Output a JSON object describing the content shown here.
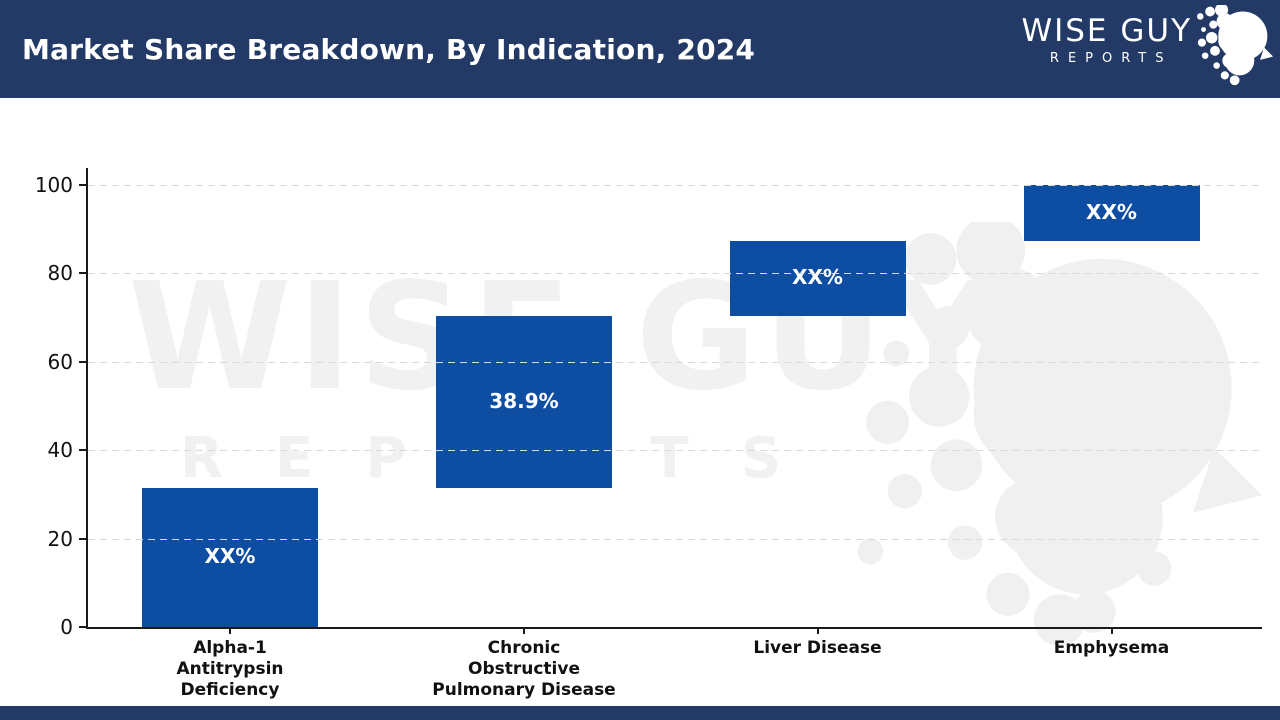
{
  "header": {
    "title": "Market Share Breakdown, By Indication, 2024",
    "logo": {
      "line1": "WISE GUY",
      "line2": "REPORTS"
    }
  },
  "watermark": {
    "line1": "WISE GUY",
    "line2": "REPORTS"
  },
  "colors": {
    "header_bg": "#233a66",
    "footer_bg": "#233a66",
    "bar_blue": "#0d4da2",
    "grid_gray": "#d9d9d9",
    "axis_black": "#1a1a1a",
    "watermark_gray": "#f1f1f1"
  },
  "chart_data": {
    "type": "bar",
    "subtype": "waterfall",
    "title": "Market Share Breakdown, By Indication, 2024",
    "xlabel": "",
    "ylabel": "",
    "ylim": [
      0,
      100
    ],
    "y_ticks": [
      0,
      20,
      40,
      60,
      80,
      100
    ],
    "grid": "horizontal dashed",
    "legend": "none",
    "bar_color": "#0d4da2",
    "label_color": "#ffffff",
    "categories": [
      "Alpha-1\nAntitrypsin\nDeficiency",
      "Chronic\nObstructive\nPulmonary Disease",
      "Liver Disease",
      "Emphysema"
    ],
    "segments": [
      {
        "category": "Alpha-1\nAntitrypsin\nDeficiency",
        "start": 0,
        "end": 31.5,
        "label": "XX%"
      },
      {
        "category": "Chronic\nObstructive\nPulmonary Disease",
        "start": 31.5,
        "end": 70.4,
        "label": "38.9%"
      },
      {
        "category": "Liver Disease",
        "start": 70.4,
        "end": 87.4,
        "label": "XX%"
      },
      {
        "category": "Emphysema",
        "start": 87.4,
        "end": 100,
        "label": "XX%"
      }
    ]
  }
}
